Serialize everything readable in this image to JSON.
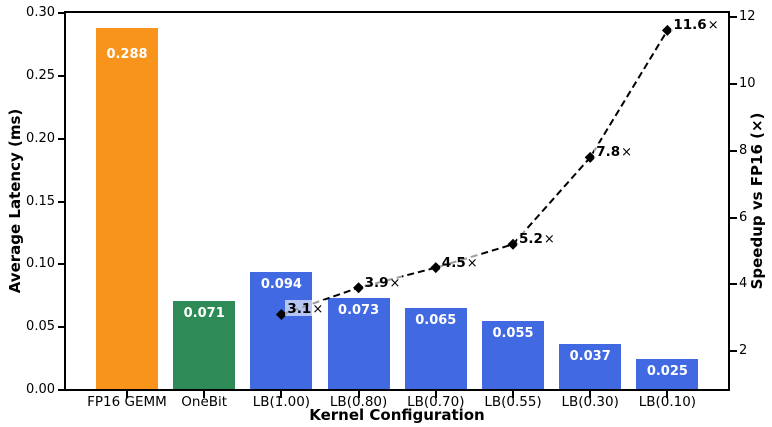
{
  "chart_data": {
    "type": "bar",
    "title": "",
    "categories": [
      "FP16 GEMM",
      "OneBit",
      "LB(1.00)",
      "LB(0.80)",
      "LB(0.70)",
      "LB(0.55)",
      "LB(0.30)",
      "LB(0.10)"
    ],
    "series": [
      {
        "name": "Average Latency",
        "type": "bar",
        "axis": "left",
        "values": [
          0.288,
          0.071,
          0.094,
          0.073,
          0.065,
          0.055,
          0.037,
          0.025
        ],
        "value_labels": [
          "0.288",
          "0.071",
          "0.094",
          "0.073",
          "0.065",
          "0.055",
          "0.037",
          "0.025"
        ],
        "bar_colors": [
          "#F8941C",
          "#2E8B57",
          "#4169E1",
          "#4169E1",
          "#4169E1",
          "#4169E1",
          "#4169E1",
          "#4169E1"
        ]
      },
      {
        "name": "Speedup vs FP16",
        "type": "line",
        "axis": "right",
        "start_category_index": 2,
        "values": [
          3.1,
          3.9,
          4.5,
          5.2,
          7.8,
          11.6
        ],
        "point_labels": [
          "3.1",
          "3.9",
          "4.5",
          "5.2",
          "7.8",
          "11.6"
        ],
        "label_suffix": "×",
        "color": "#000000",
        "style": "dashed",
        "marker": "diamond"
      }
    ],
    "xlabel": "Kernel Configuration",
    "ylabel_left": "Average Latency (ms)",
    "ylabel_right": "Speedup vs FP16 (×)",
    "left_axis": {
      "ticks": [
        0.0,
        0.05,
        0.1,
        0.15,
        0.2,
        0.25,
        0.3
      ],
      "tick_labels": [
        "0.00",
        "0.05",
        "0.10",
        "0.15",
        "0.20",
        "0.25",
        "0.30"
      ],
      "range": [
        0,
        0.3
      ]
    },
    "right_axis": {
      "ticks": [
        2,
        4,
        6,
        8,
        10,
        12
      ],
      "tick_labels": [
        "2",
        "4",
        "6",
        "8",
        "10",
        "12"
      ],
      "range": [
        0.84,
        12.12
      ]
    },
    "grid": false,
    "legend": "none"
  }
}
